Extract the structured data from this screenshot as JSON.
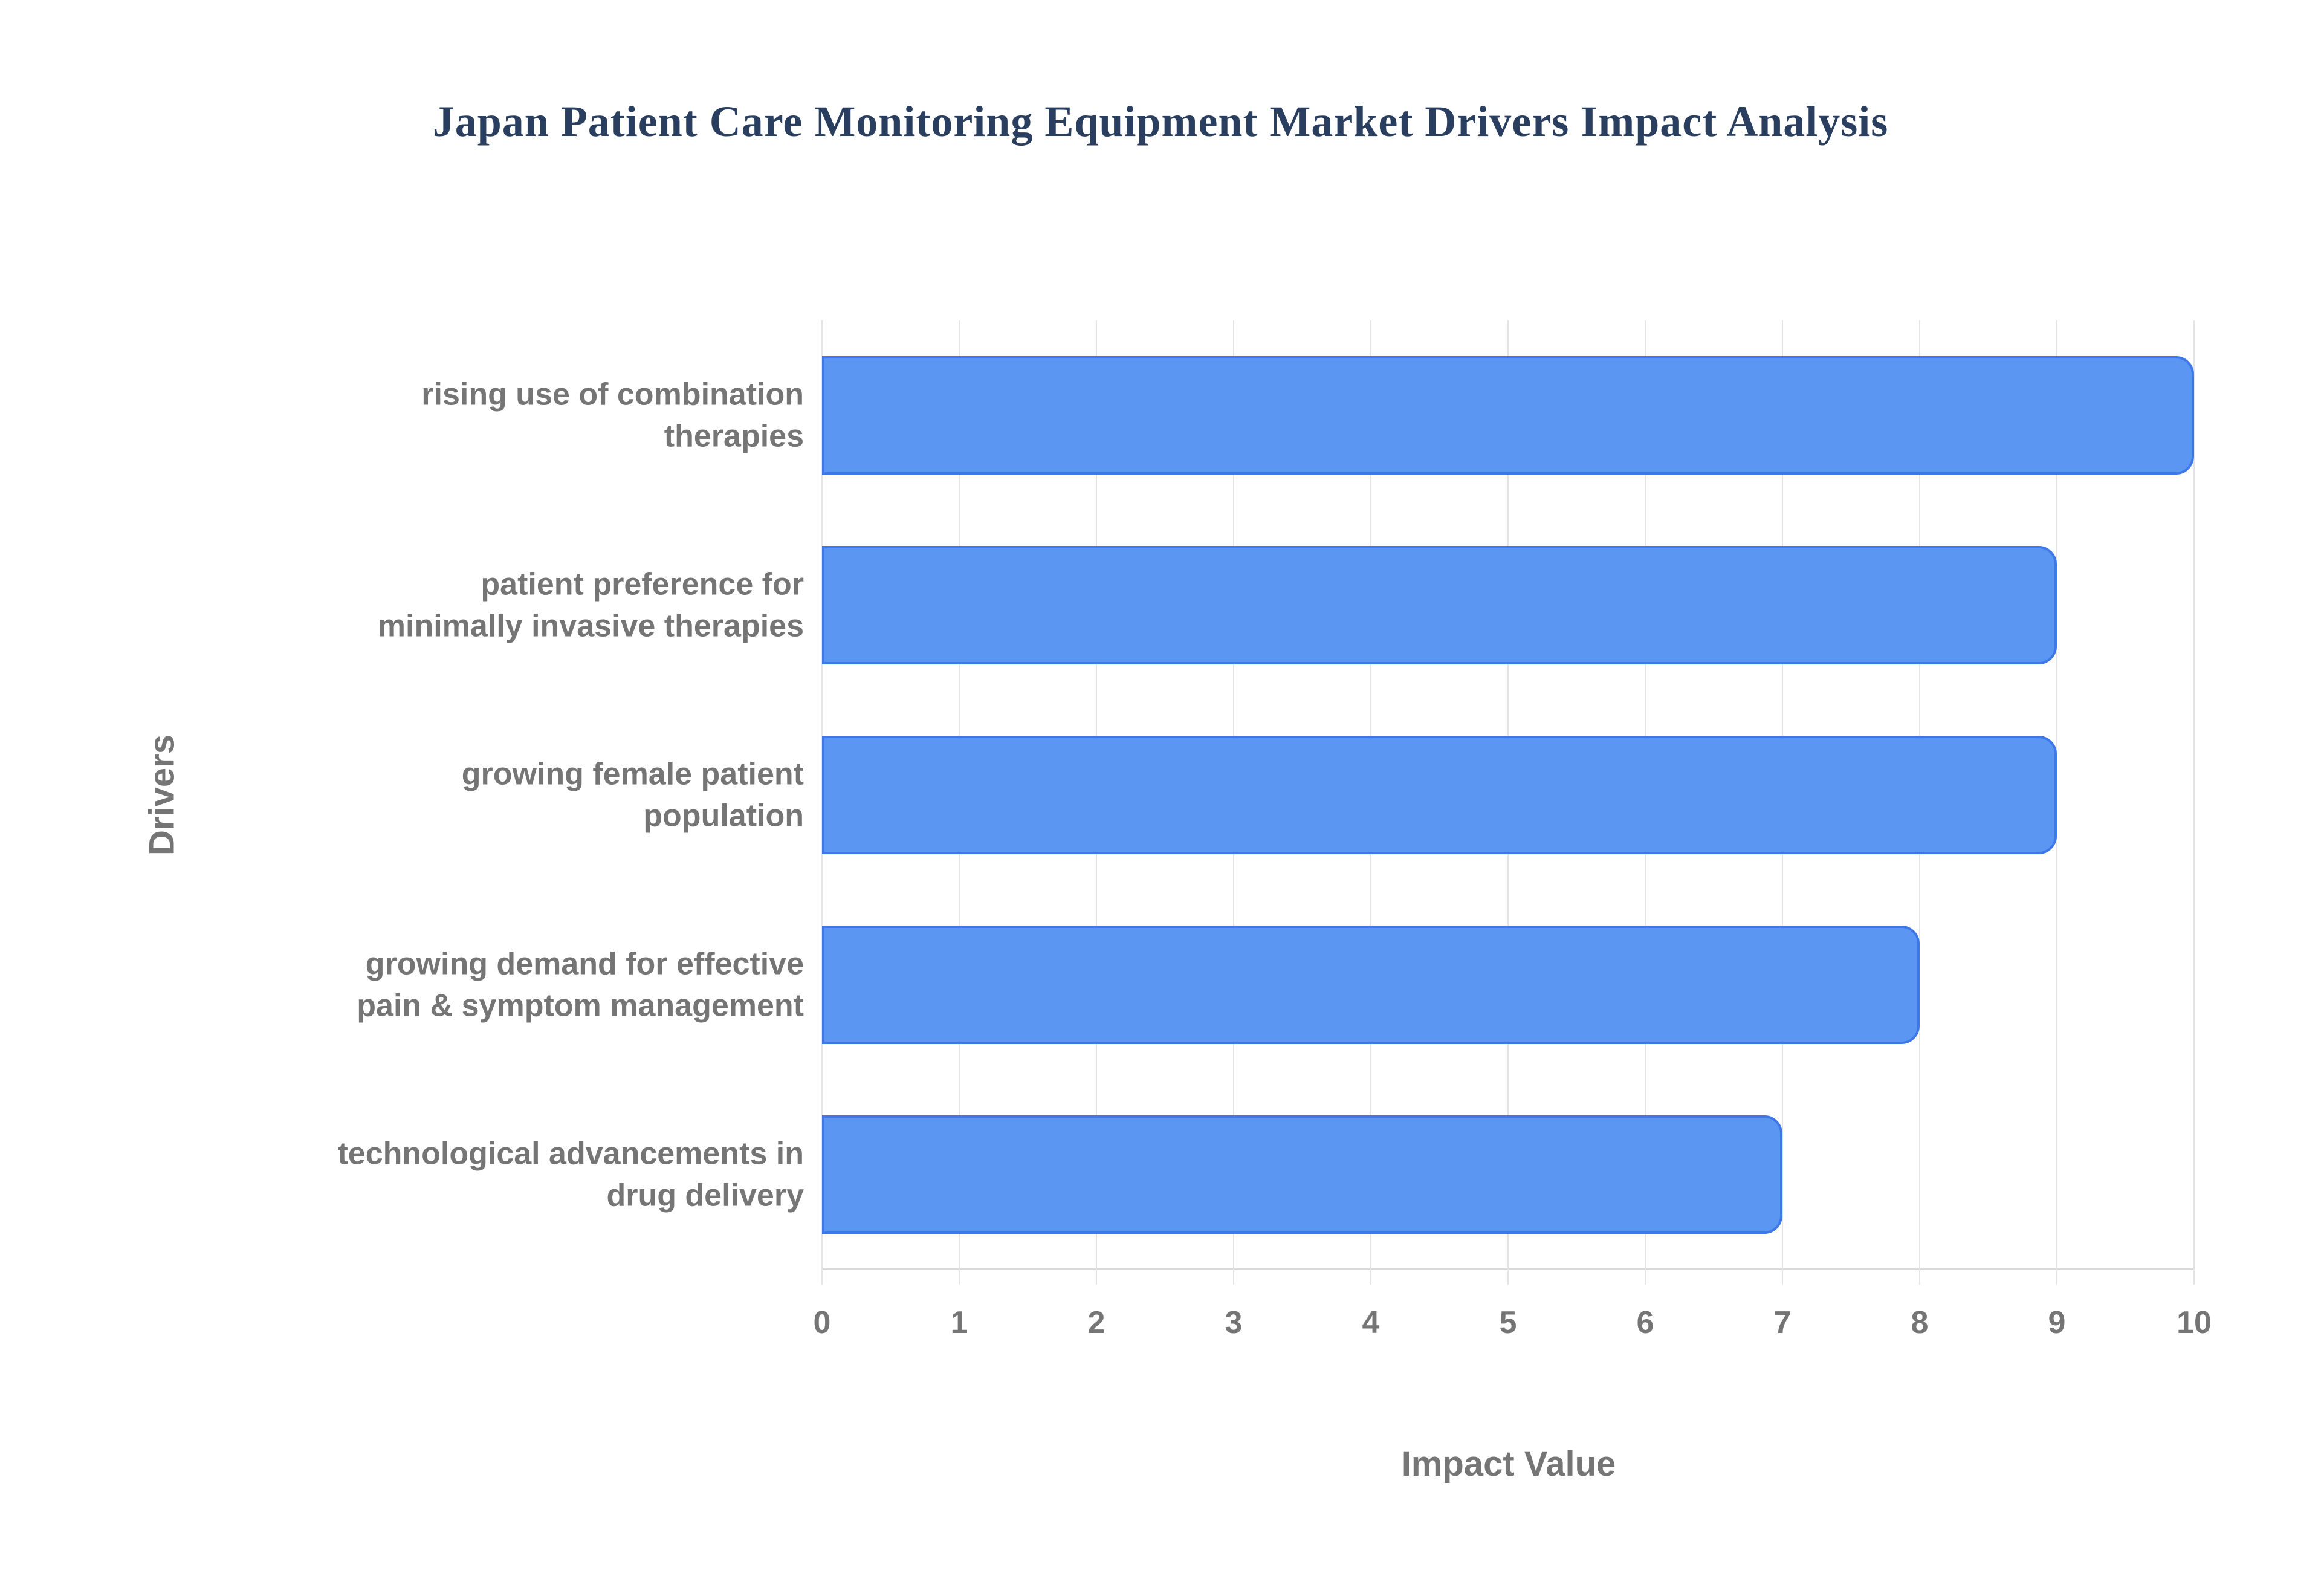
{
  "chart_data": {
    "type": "bar",
    "orientation": "horizontal",
    "title": "Japan Patient Care Monitoring Equipment Market Drivers Impact Analysis",
    "xlabel": "Impact Value",
    "ylabel": "Drivers",
    "categories": [
      "rising use of combination\ntherapies",
      "patient preference for\nminimally invasive therapies",
      "growing female patient\npopulation",
      "growing demand for effective\npain & symptom management",
      "technological advancements in\ndrug delivery"
    ],
    "values": [
      10,
      9,
      9,
      8,
      7
    ],
    "xlim": [
      0,
      10
    ],
    "xticks": [
      0,
      1,
      2,
      3,
      4,
      5,
      6,
      7,
      8,
      9,
      10
    ],
    "grid": true,
    "legend": false,
    "colors": {
      "bar_fill": "#5c96f3",
      "bar_border": "#3e78e8",
      "gridline": "#e4e4e4",
      "axis_line": "#d9d9d9",
      "label_text": "#757575",
      "title_text": "#2a3f5f",
      "background": "#ffffff"
    }
  }
}
